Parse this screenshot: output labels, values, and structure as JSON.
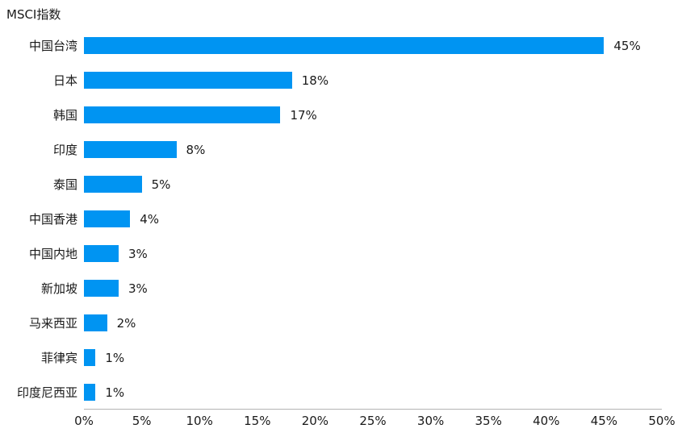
{
  "page": {
    "background": "#ffffff"
  },
  "chart_data": {
    "type": "bar",
    "orientation": "horizontal",
    "title": "MSCI指数",
    "categories": [
      "中国台湾",
      "日本",
      "韩国",
      "印度",
      "泰国",
      "中国香港",
      "中国内地",
      "新加坡",
      "马来西亚",
      "菲律宾",
      "印度尼西亚"
    ],
    "values": [
      45,
      18,
      17,
      8,
      5,
      4,
      3,
      3,
      2,
      1,
      1
    ],
    "value_labels": [
      "45%",
      "18%",
      "17%",
      "8%",
      "5%",
      "4%",
      "3%",
      "3%",
      "2%",
      "1%",
      "1%"
    ],
    "xlabel": "",
    "ylabel": "",
    "xlim": [
      0,
      50
    ],
    "x_ticks": [
      0,
      5,
      10,
      15,
      20,
      25,
      30,
      35,
      40,
      45,
      50
    ],
    "x_tick_labels": [
      "0%",
      "5%",
      "10%",
      "15%",
      "20%",
      "25%",
      "30%",
      "35%",
      "40%",
      "45%",
      "50%"
    ],
    "bar_color": "#0094f2",
    "axis_line_color": "#b3b3b3",
    "text_color": "#1a1a1a",
    "grid": false,
    "legend": false
  }
}
